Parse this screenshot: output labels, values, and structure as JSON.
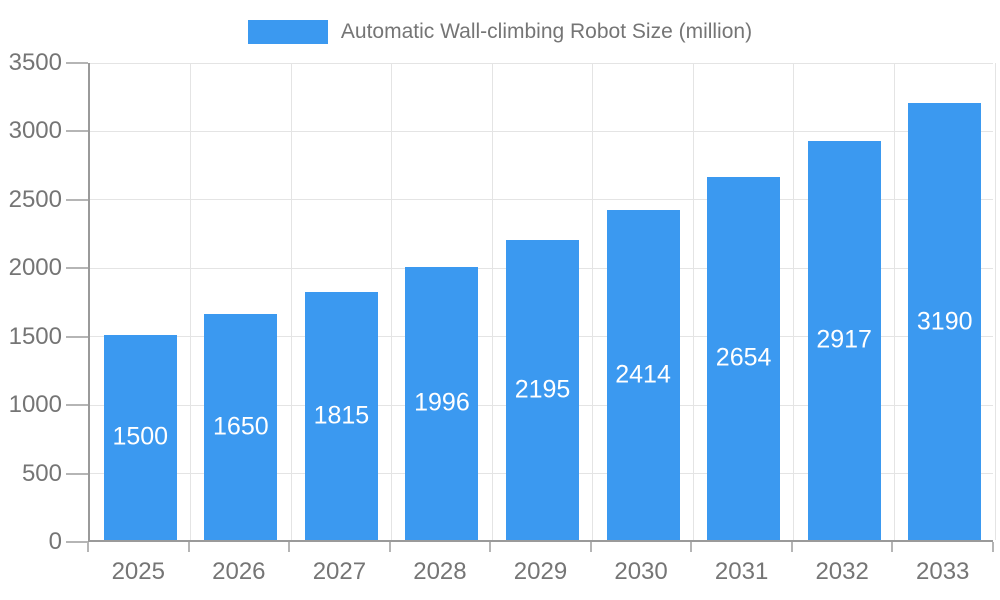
{
  "chart_data": {
    "type": "bar",
    "title": "Automatic Wall-climbing Robot Size (million)",
    "legend": {
      "position": "top",
      "entries": [
        "Automatic Wall-climbing Robot Size (million)"
      ]
    },
    "categories": [
      "2025",
      "2026",
      "2027",
      "2028",
      "2029",
      "2030",
      "2031",
      "2032",
      "2033"
    ],
    "values": [
      1500,
      1650,
      1815,
      1996,
      2195,
      2414,
      2654,
      2917,
      3190
    ],
    "value_labels": [
      "1500",
      "1650",
      "1815",
      "1996",
      "2195",
      "2414",
      "2654",
      "2917",
      "3190"
    ],
    "xlabel": "",
    "ylabel": "",
    "ylim": [
      0,
      3500
    ],
    "ytick_step": 500,
    "yticks": [
      0,
      500,
      1000,
      1500,
      2000,
      2500,
      3000,
      3500
    ],
    "grid": true,
    "colors": {
      "bar": "#3b99f0",
      "value_label_text": "#ffffff",
      "axis_line": "#9a9a9a",
      "tick_mark": "#b5b5b5",
      "gridline": "#e4e4e4",
      "tick_text": "#757575",
      "legend_text": "#757575",
      "background": "#ffffff"
    }
  }
}
